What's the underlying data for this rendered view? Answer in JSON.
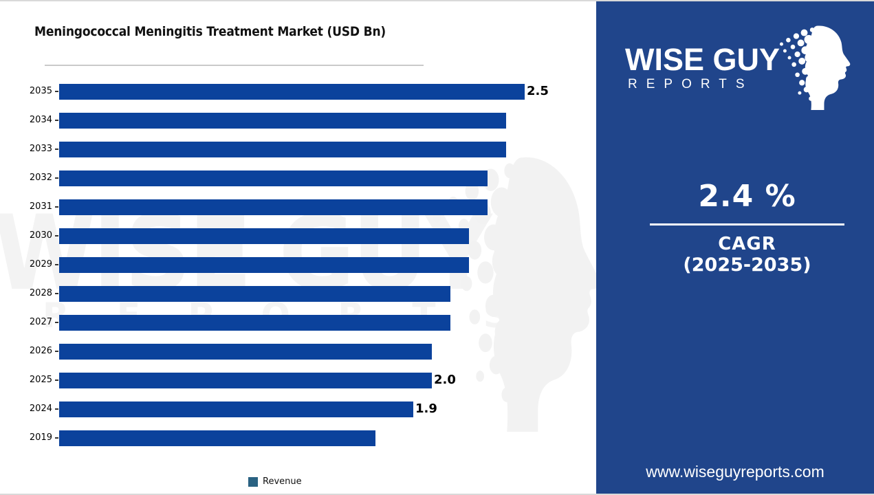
{
  "chart_data": {
    "type": "bar",
    "orientation": "horizontal",
    "title": "Meningococcal Meningitis Treatment Market (USD Bn)",
    "categories": [
      "2035",
      "2034",
      "2033",
      "2032",
      "2031",
      "2030",
      "2029",
      "2028",
      "2027",
      "2026",
      "2025",
      "2024",
      "2019"
    ],
    "series": [
      {
        "name": "Revenue",
        "values": [
          2.5,
          2.4,
          2.4,
          2.3,
          2.3,
          2.2,
          2.2,
          2.1,
          2.1,
          2.0,
          2.0,
          1.9,
          1.7
        ]
      }
    ],
    "data_labels": {
      "2035": "2.5",
      "2025": "2.0",
      "2024": "1.9"
    },
    "units": "USD Bn",
    "xlabel": "",
    "ylabel": "",
    "xlim": [
      0,
      2.8
    ],
    "grid": false,
    "legend_entries": [
      "Revenue"
    ],
    "legend_position": "bottom-center",
    "bar_color": "#0b429c",
    "legend_marker_color": "#2a6282"
  },
  "watermark": {
    "line1": "WISE GUY",
    "line2": "R E P O R T S"
  },
  "sidebar": {
    "bg_color": "#20458B",
    "brand_line1": "WISE GUY",
    "brand_line2": "REPORTS",
    "cagr_value": "2.4 %",
    "cagr_title": "CAGR",
    "cagr_range": "(2025-2035)",
    "website": "www.wiseguyreports.com"
  }
}
